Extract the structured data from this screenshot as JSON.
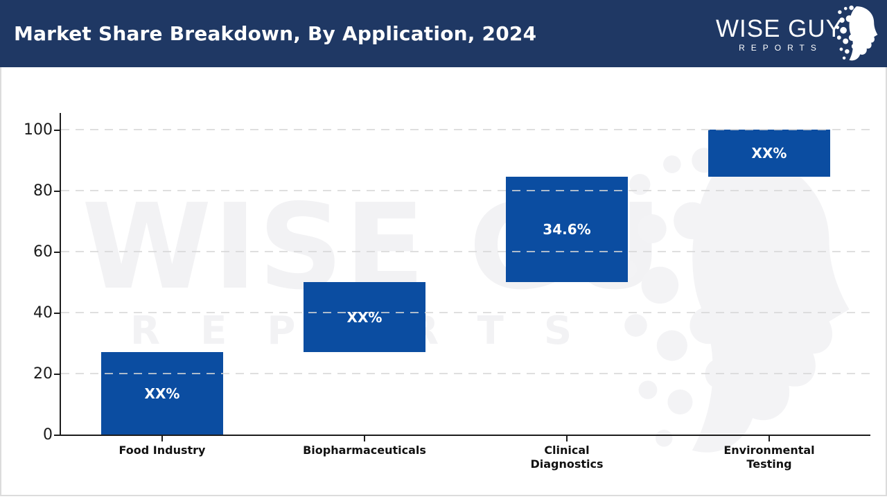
{
  "header": {
    "title": "Market Share Breakdown, By Application, 2024",
    "bg_color": "#1f3864",
    "logo": {
      "brand": "WISE GUY",
      "sub": "REPORTS"
    }
  },
  "watermark": {
    "line1": "WISE GU",
    "line2": "REPORTS"
  },
  "chart_data": {
    "type": "bar",
    "subtype": "stacked-waterfall-percent",
    "title": "Market Share Breakdown, By Application, 2024",
    "xlabel": "",
    "ylabel": "",
    "ylim": [
      0,
      105
    ],
    "yticks": [
      0,
      20,
      40,
      60,
      80,
      100
    ],
    "grid": {
      "axis": "y",
      "style": "dashed",
      "drawn_over_bars": true
    },
    "legend": "none",
    "bar_color": "#0b4da1",
    "bar_label_color": "#ffffff",
    "axis_color": "#1c1c1c",
    "categories": [
      "Food Industry",
      "Biopharmaceuticals",
      "Clinical Diagnostics",
      "Environmental Testing"
    ],
    "segments": [
      {
        "category": "Food Industry",
        "start": 0,
        "end": 27,
        "value_label": "XX%"
      },
      {
        "category": "Biopharmaceuticals",
        "start": 27,
        "end": 50,
        "value_label": "XX%"
      },
      {
        "category": "Clinical Diagnostics",
        "start": 50,
        "end": 84.6,
        "value": 34.6,
        "value_label": "34.6%"
      },
      {
        "category": "Environmental Testing",
        "start": 84.6,
        "end": 100,
        "value_label": "XX%"
      }
    ]
  }
}
